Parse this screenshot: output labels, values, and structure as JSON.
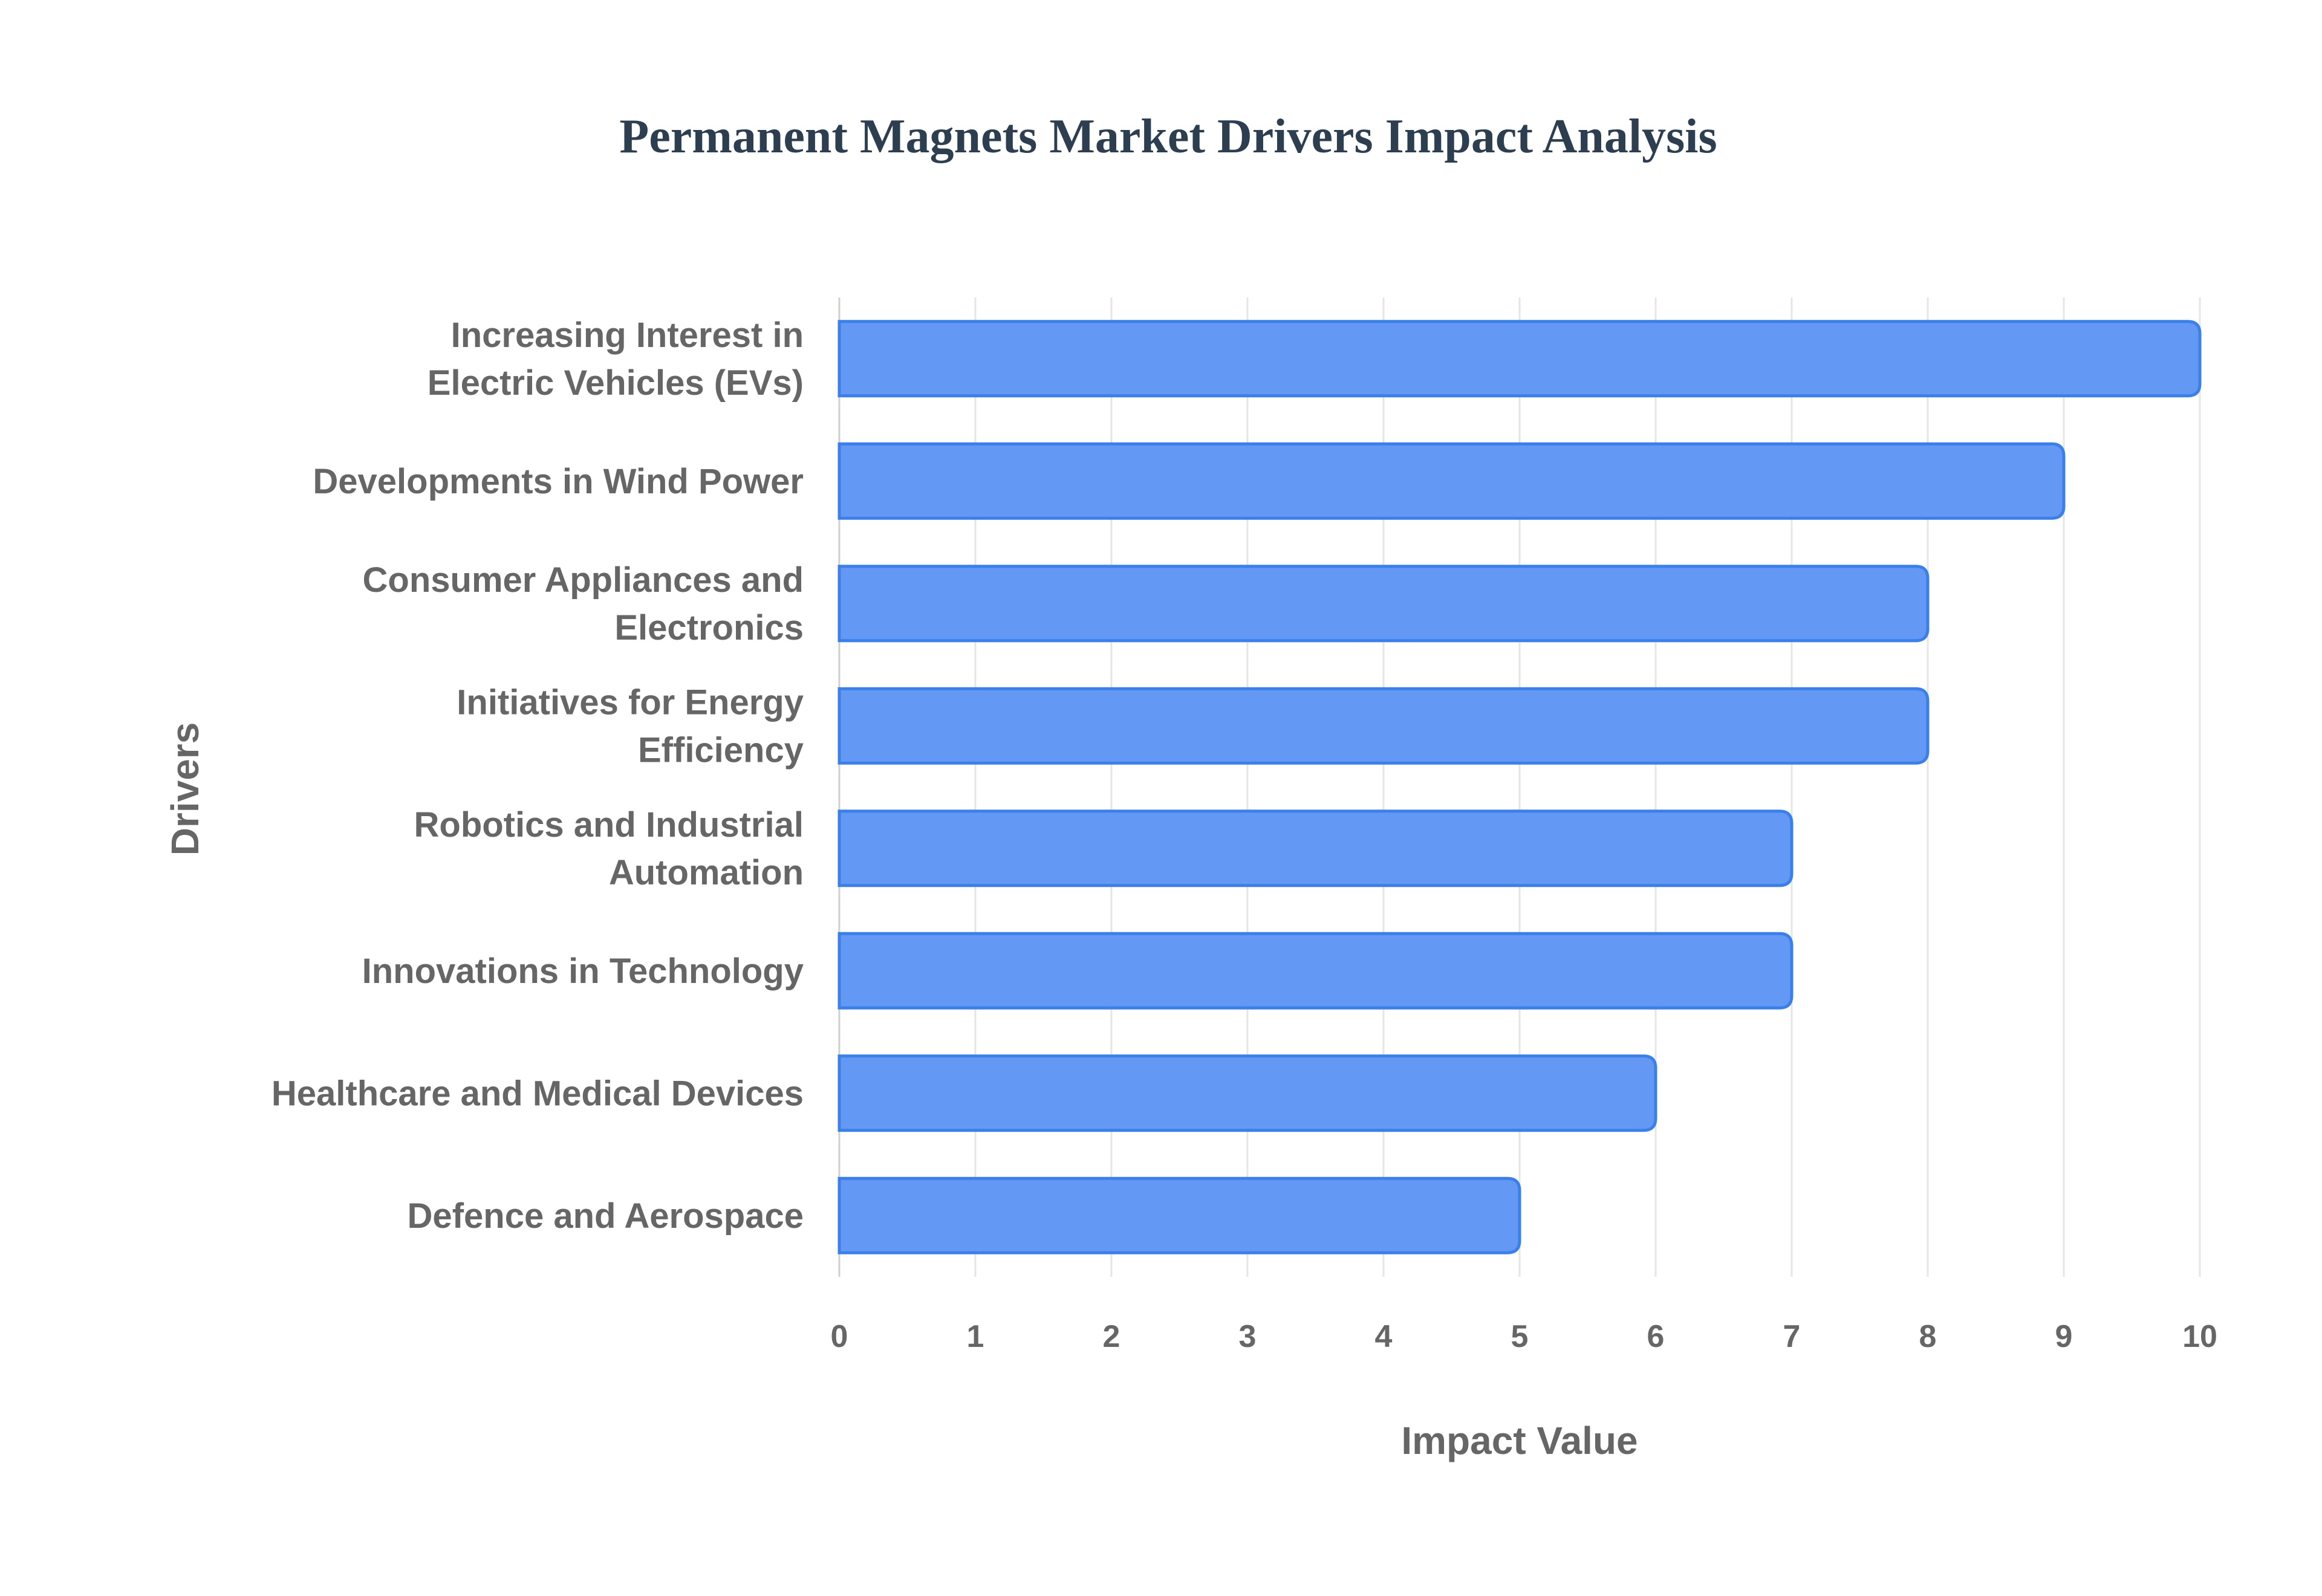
{
  "chart_data": {
    "type": "bar",
    "orientation": "horizontal",
    "title": "Permanent Magnets Market Drivers Impact Analysis",
    "xlabel": "Impact Value",
    "ylabel": "Drivers",
    "xlim": [
      0,
      10
    ],
    "xticks": [
      "0",
      "1",
      "2",
      "3",
      "4",
      "5",
      "6",
      "7",
      "8",
      "9",
      "10"
    ],
    "grid": true,
    "categories": [
      [
        "Increasing Interest in",
        "Electric Vehicles (EVs)"
      ],
      [
        "Developments in Wind Power"
      ],
      [
        "Consumer Appliances and",
        "Electronics"
      ],
      [
        "Initiatives for Energy",
        "Efficiency"
      ],
      [
        "Robotics and Industrial",
        "Automation"
      ],
      [
        "Innovations in Technology"
      ],
      [
        "Healthcare and Medical Devices"
      ],
      [
        "Defence and Aerospace"
      ]
    ],
    "values": [
      10,
      9,
      8,
      8,
      7,
      7,
      6,
      5
    ],
    "colors": {
      "bar_fill": "#6399f5",
      "bar_border": "#3b7fe8",
      "grid": "#e6e6e6",
      "text": "#666666",
      "title": "#2c3e50"
    }
  }
}
